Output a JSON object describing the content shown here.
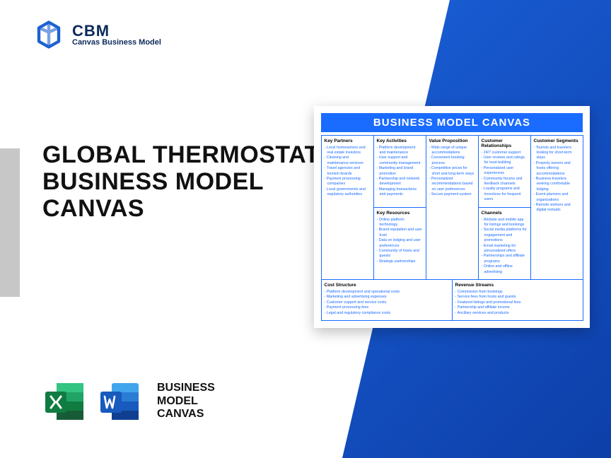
{
  "brand": {
    "main": "CBM",
    "sub": "Canvas Business Model"
  },
  "colors": {
    "accent": "#1a6bff",
    "panel_start": "#1a5fd8",
    "panel_end": "#0d3fa8",
    "logo": "#1e62d0",
    "excel_dark": "#107c41",
    "excel_light": "#21a366",
    "word_dark": "#103f91",
    "word_light": "#2b7cd3"
  },
  "headline": "GLOBAL THERMOSTAT BUSINESS MODEL CANVAS",
  "bottom_label": "BUSINESS\nMODEL\nCANVAS",
  "canvas": {
    "title": "BUSINESS MODEL CANVAS",
    "key_partners": {
      "title": "Key Partners",
      "items": [
        "Local homeowners and real estate investors",
        "Cleaning and maintenance services",
        "Travel agencies and tourism boards",
        "Payment processing companies",
        "Local governments and regulatory authorities"
      ]
    },
    "key_activities": {
      "title": "Key Activities",
      "items": [
        "Platform development and maintenance",
        "User support and community management",
        "Marketing and brand promotion",
        "Partnership and network development",
        "Managing transactions and payments"
      ]
    },
    "key_resources": {
      "title": "Key Resources",
      "items": [
        "Online platform technology",
        "Brand reputation and user trust",
        "Data on lodging and user preferences",
        "Community of hosts and guests",
        "Strategic partnerships"
      ]
    },
    "value_proposition": {
      "title": "Value Proposition",
      "items": [
        "Wide range of unique accommodations",
        "Convenient booking process",
        "Competitive prices for short and long-term stays",
        "Personalized recommendations based on user preferences",
        "Secure payment system"
      ]
    },
    "customer_relationships": {
      "title": "Customer Relationships",
      "items": [
        "24/7 customer support",
        "User reviews and ratings for trust-building",
        "Personalized user experiences",
        "Community forums and feedback channels",
        "Loyalty programs and incentives for frequent users"
      ]
    },
    "channels": {
      "title": "Channels",
      "items": [
        "Website and mobile app for listings and bookings",
        "Social media platforms for engagement and promotions",
        "Email marketing for personalized offers",
        "Partnerships and affiliate programs",
        "Online and offline advertising"
      ]
    },
    "customer_segments": {
      "title": "Customer Segments",
      "items": [
        "Tourists and travelers looking for short-term stays",
        "Property owners and hosts offering accommodations",
        "Business travelers seeking comfortable lodging",
        "Event planners and organizations",
        "Remote workers and digital nomads"
      ]
    },
    "cost_structure": {
      "title": "Cost Structure",
      "items": [
        "Platform development and operational costs",
        "Marketing and advertising expenses",
        "Customer support and service costs",
        "Payment processing fees",
        "Legal and regulatory compliance costs"
      ]
    },
    "revenue_streams": {
      "title": "Revenue Streams",
      "items": [
        "Commission from bookings",
        "Service fees from hosts and guests",
        "Featured listings and promotional fees",
        "Partnership and affiliate income",
        "Ancillary services and products"
      ]
    }
  }
}
